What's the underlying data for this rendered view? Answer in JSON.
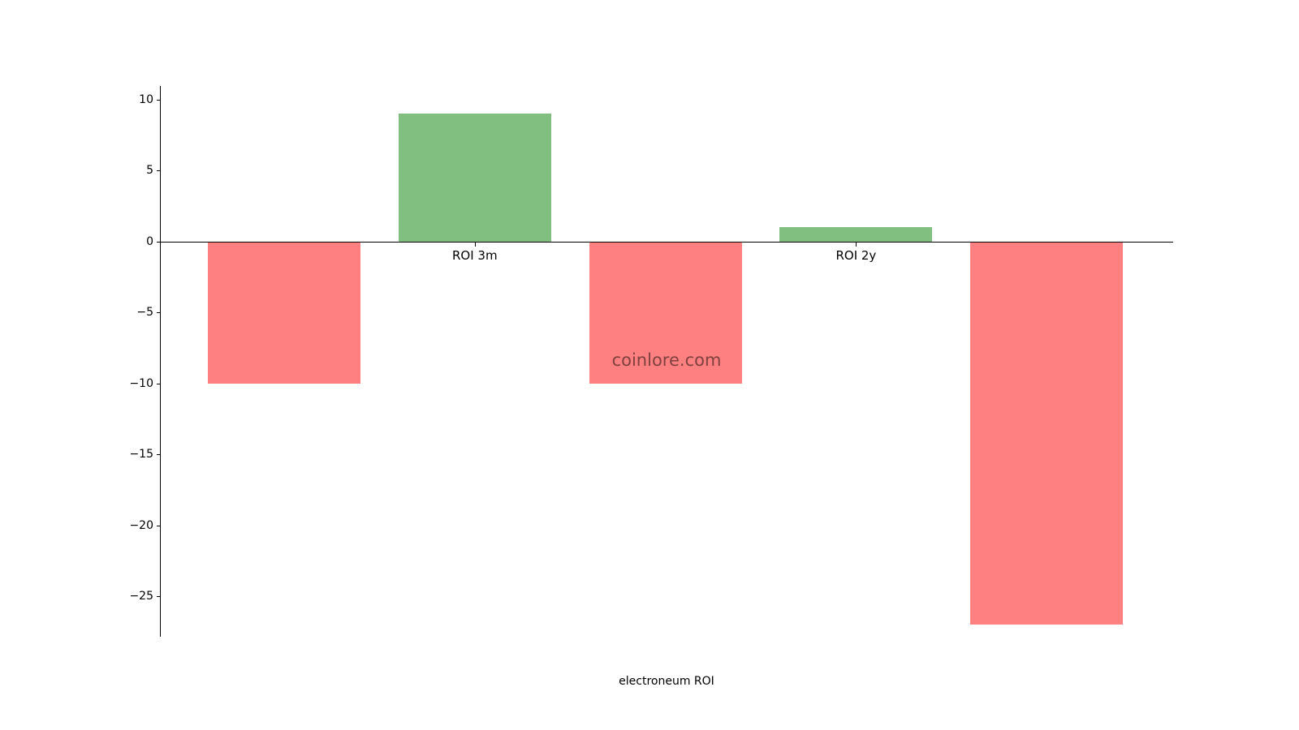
{
  "chart_data": {
    "type": "bar",
    "title": "",
    "xlabel": "electroneum ROI",
    "ylabel": "",
    "categories": [
      "",
      "ROI 3m",
      "",
      "ROI 2y",
      ""
    ],
    "values": [
      -10,
      9,
      -10,
      1,
      -27
    ],
    "bar_colors": [
      "#ff8080",
      "#80bf80",
      "#ff8080",
      "#80bf80",
      "#ff8080"
    ],
    "positive_color": "#80bf80",
    "negative_color": "#ff8080",
    "yticks": [
      10,
      5,
      0,
      -5,
      -10,
      -15,
      -20,
      -25
    ],
    "ytick_labels": [
      "10",
      "5",
      "0",
      "−5",
      "−10",
      "−15",
      "−20",
      "−25"
    ],
    "ylim": [
      -28.5,
      11
    ],
    "grid": false,
    "legend_position": "none",
    "axis_color": "#000000",
    "background_color": "#ffffff"
  },
  "watermark": {
    "text": "coinlore.com",
    "color": "rgba(0,0,0,0.5)"
  }
}
